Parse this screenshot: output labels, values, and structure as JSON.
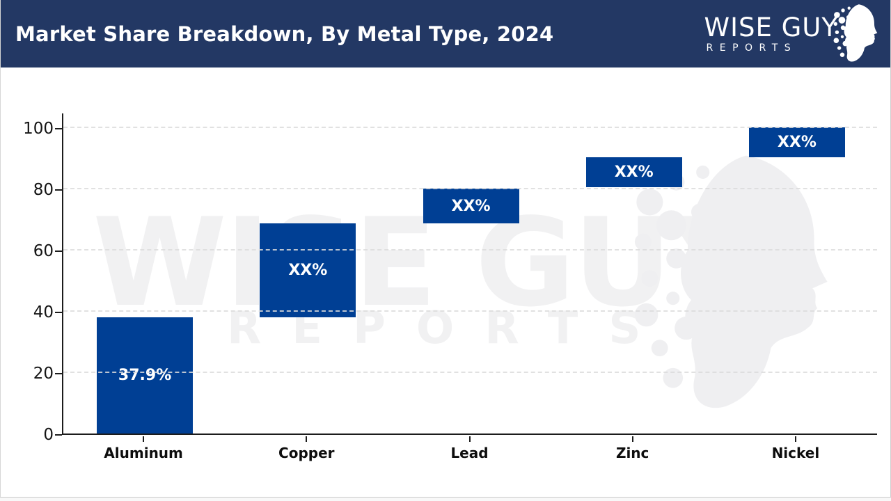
{
  "header": {
    "title": "Market Share Breakdown, By Metal Type, 2024",
    "logo": {
      "line1": "WISE GUY",
      "line2": "REPORTS"
    },
    "background_color": "#233864",
    "text_color": "#ffffff"
  },
  "watermark": {
    "line1": "WISE GUY",
    "line2": "REPORTS"
  },
  "chart_data": {
    "type": "bar",
    "subtype": "waterfall",
    "title": "Market Share Breakdown, By Metal Type, 2024",
    "categories": [
      "Aluminum",
      "Copper",
      "Lead",
      "Zinc",
      "Nickel"
    ],
    "series": [
      {
        "name": "Market Share",
        "segments": [
          {
            "category": "Aluminum",
            "start": 0,
            "end": 37.9,
            "label": "37.9%"
          },
          {
            "category": "Copper",
            "start": 37.9,
            "end": 68.6,
            "label": "XX%"
          },
          {
            "category": "Lead",
            "start": 68.6,
            "end": 80.0,
            "label": "XX%"
          },
          {
            "category": "Zinc",
            "start": 80.4,
            "end": 90.2,
            "label": "XX%"
          },
          {
            "category": "Nickel",
            "start": 90.2,
            "end": 100.0,
            "label": "XX%"
          }
        ]
      }
    ],
    "xlabel": "",
    "ylabel": "",
    "yticks": [
      0,
      20,
      40,
      60,
      80,
      100
    ],
    "ylim": [
      0,
      105
    ],
    "grid": "horizontal-dashed-over-bars",
    "bar_color": "#003F94",
    "bar_label_color": "#ffffff",
    "legend": "none"
  }
}
